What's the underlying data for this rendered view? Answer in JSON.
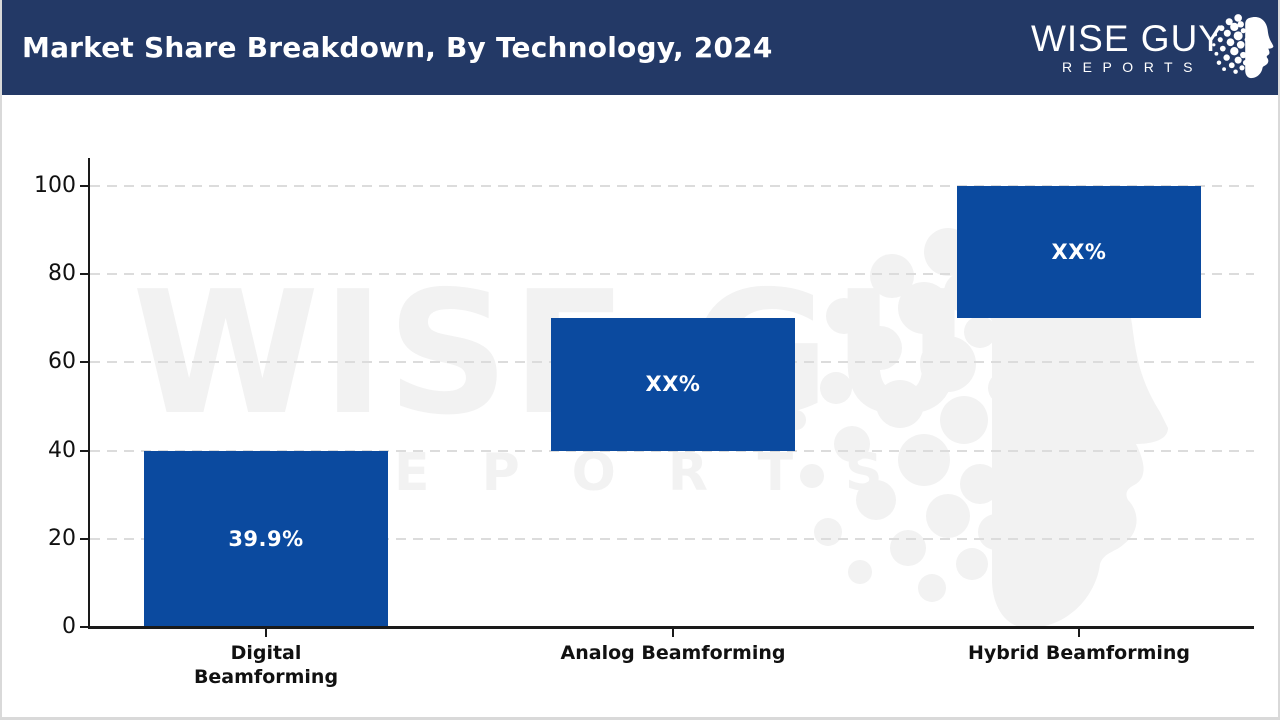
{
  "header": {
    "title": "Market Share Breakdown, By Technology, 2024",
    "logo": {
      "name": "WISE GUY",
      "subname": "REPORTS"
    }
  },
  "watermark": {
    "name": "WISE GUY",
    "subname": "REPORTS"
  },
  "chart_data": {
    "type": "bar",
    "subtype": "waterfall",
    "title": "Market Share Breakdown, By Technology, 2024",
    "categories": [
      "Digital Beamforming",
      "Analog Beamforming",
      "Hybrid Beamforming"
    ],
    "tick_labels": [
      "Digital\nBeamforming",
      "Analog Beamforming",
      "Hybrid Beamforming"
    ],
    "series": [
      {
        "category": "Digital Beamforming",
        "base": 0,
        "top": 39.9,
        "label": "39.9%"
      },
      {
        "category": "Analog Beamforming",
        "base": 40,
        "top": 70,
        "label": "XX%"
      },
      {
        "category": "Hybrid Beamforming",
        "base": 70,
        "top": 100,
        "label": "XX%"
      }
    ],
    "xlabel": "",
    "ylabel": "",
    "yticks": [
      0,
      20,
      40,
      60,
      80,
      100
    ],
    "ylim": [
      0,
      106
    ],
    "grid": "horizontal-dashed",
    "legend": "none",
    "bar_color": "#0b4a9f",
    "bar_label_color": "#ffffff"
  },
  "colors": {
    "header_bg": "#233966",
    "bar": "#0b4a9f",
    "grid": "#dcdcdc",
    "axis": "#1a1a1a",
    "watermark": "#f2f2f2",
    "border": "#d9d9d9"
  }
}
